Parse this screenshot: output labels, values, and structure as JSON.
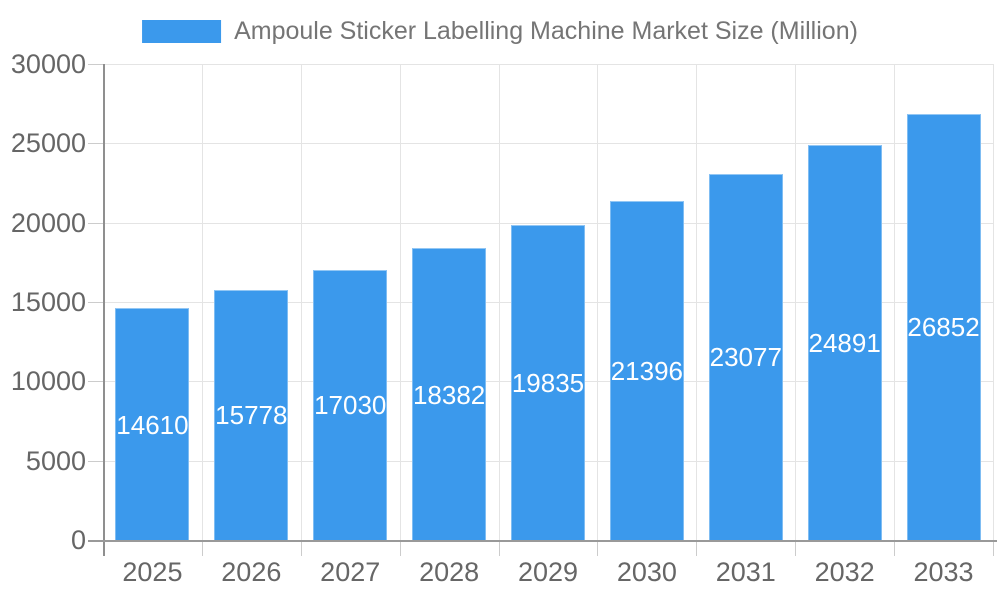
{
  "legend": {
    "label": "Ampoule Sticker Labelling Machine Market Size (Million)"
  },
  "colors": {
    "bar": "#3B99EC",
    "axis_line": "#999999",
    "tick": "#cccccc",
    "gridline": "#e4e4e4",
    "axis_label_text": "#666666",
    "legend_text": "#757575",
    "value_label_text": "#ffffff",
    "background": "#ffffff"
  },
  "chart_data": {
    "type": "bar",
    "title": "Ampoule Sticker Labelling Machine Market Size (Million)",
    "categories": [
      "2025",
      "2026",
      "2027",
      "2028",
      "2029",
      "2030",
      "2031",
      "2032",
      "2033"
    ],
    "values": [
      14610,
      15778,
      17030,
      18382,
      19835,
      21396,
      23077,
      24891,
      26852
    ],
    "xlabel": "",
    "ylabel": "",
    "ylim": [
      0,
      30000
    ],
    "yticks": [
      0,
      5000,
      10000,
      15000,
      20000,
      25000,
      30000
    ],
    "grid": true,
    "value_labels": "inside-center",
    "legend_position": "top-center",
    "bar_color": "#3B99EC"
  }
}
